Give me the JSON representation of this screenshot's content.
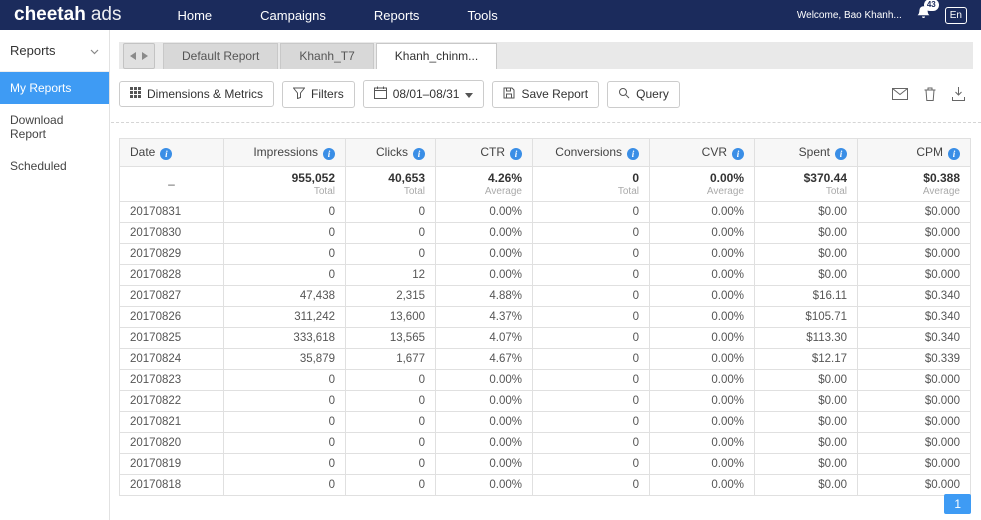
{
  "colors": {
    "navbar_bg": "#1b2b5c",
    "accent_blue": "#3e9bf4",
    "info_blue": "#3a8ee6"
  },
  "icons": {
    "info": "i"
  },
  "navbar": {
    "logo_bold": "cheetah",
    "logo_light": "ads",
    "items": [
      {
        "label": "Home"
      },
      {
        "label": "Campaigns"
      },
      {
        "label": "Reports"
      },
      {
        "label": "Tools"
      }
    ],
    "welcome": "Welcome,  Bao Khanh...",
    "notification_count": "43",
    "language": "En"
  },
  "sidebar": {
    "section": "Reports",
    "items": [
      {
        "label": "My Reports",
        "active": true
      },
      {
        "label": "Download Report",
        "active": false
      },
      {
        "label": "Scheduled",
        "active": false
      }
    ]
  },
  "tabs": [
    {
      "label": "Default Report",
      "active": false
    },
    {
      "label": "Khanh_T7",
      "active": false
    },
    {
      "label": "Khanh_chinm...",
      "active": true
    }
  ],
  "toolbar": {
    "dimensions_metrics": "Dimensions & Metrics",
    "filters": "Filters",
    "date_range": "08/01–08/31",
    "save_report": "Save Report",
    "query": "Query"
  },
  "table": {
    "columns": [
      "Date",
      "Impressions",
      "Clicks",
      "CTR",
      "Conversions",
      "CVR",
      "Spent",
      "CPM"
    ],
    "total_row": {
      "date": "–",
      "values": [
        "955,052",
        "40,653",
        "4.26%",
        "0",
        "0.00%",
        "$370.44",
        "$0.388"
      ],
      "sublabels": [
        "Total",
        "Total",
        "Average",
        "Total",
        "Average",
        "Total",
        "Average"
      ]
    },
    "rows": [
      [
        "20170831",
        "0",
        "0",
        "0.00%",
        "0",
        "0.00%",
        "$0.00",
        "$0.000"
      ],
      [
        "20170830",
        "0",
        "0",
        "0.00%",
        "0",
        "0.00%",
        "$0.00",
        "$0.000"
      ],
      [
        "20170829",
        "0",
        "0",
        "0.00%",
        "0",
        "0.00%",
        "$0.00",
        "$0.000"
      ],
      [
        "20170828",
        "0",
        "12",
        "0.00%",
        "0",
        "0.00%",
        "$0.00",
        "$0.000"
      ],
      [
        "20170827",
        "47,438",
        "2,315",
        "4.88%",
        "0",
        "0.00%",
        "$16.11",
        "$0.340"
      ],
      [
        "20170826",
        "311,242",
        "13,600",
        "4.37%",
        "0",
        "0.00%",
        "$105.71",
        "$0.340"
      ],
      [
        "20170825",
        "333,618",
        "13,565",
        "4.07%",
        "0",
        "0.00%",
        "$113.30",
        "$0.340"
      ],
      [
        "20170824",
        "35,879",
        "1,677",
        "4.67%",
        "0",
        "0.00%",
        "$12.17",
        "$0.339"
      ],
      [
        "20170823",
        "0",
        "0",
        "0.00%",
        "0",
        "0.00%",
        "$0.00",
        "$0.000"
      ],
      [
        "20170822",
        "0",
        "0",
        "0.00%",
        "0",
        "0.00%",
        "$0.00",
        "$0.000"
      ],
      [
        "20170821",
        "0",
        "0",
        "0.00%",
        "0",
        "0.00%",
        "$0.00",
        "$0.000"
      ],
      [
        "20170820",
        "0",
        "0",
        "0.00%",
        "0",
        "0.00%",
        "$0.00",
        "$0.000"
      ],
      [
        "20170819",
        "0",
        "0",
        "0.00%",
        "0",
        "0.00%",
        "$0.00",
        "$0.000"
      ],
      [
        "20170818",
        "0",
        "0",
        "0.00%",
        "0",
        "0.00%",
        "$0.00",
        "$0.000"
      ]
    ]
  },
  "pagination": {
    "current": "1"
  }
}
